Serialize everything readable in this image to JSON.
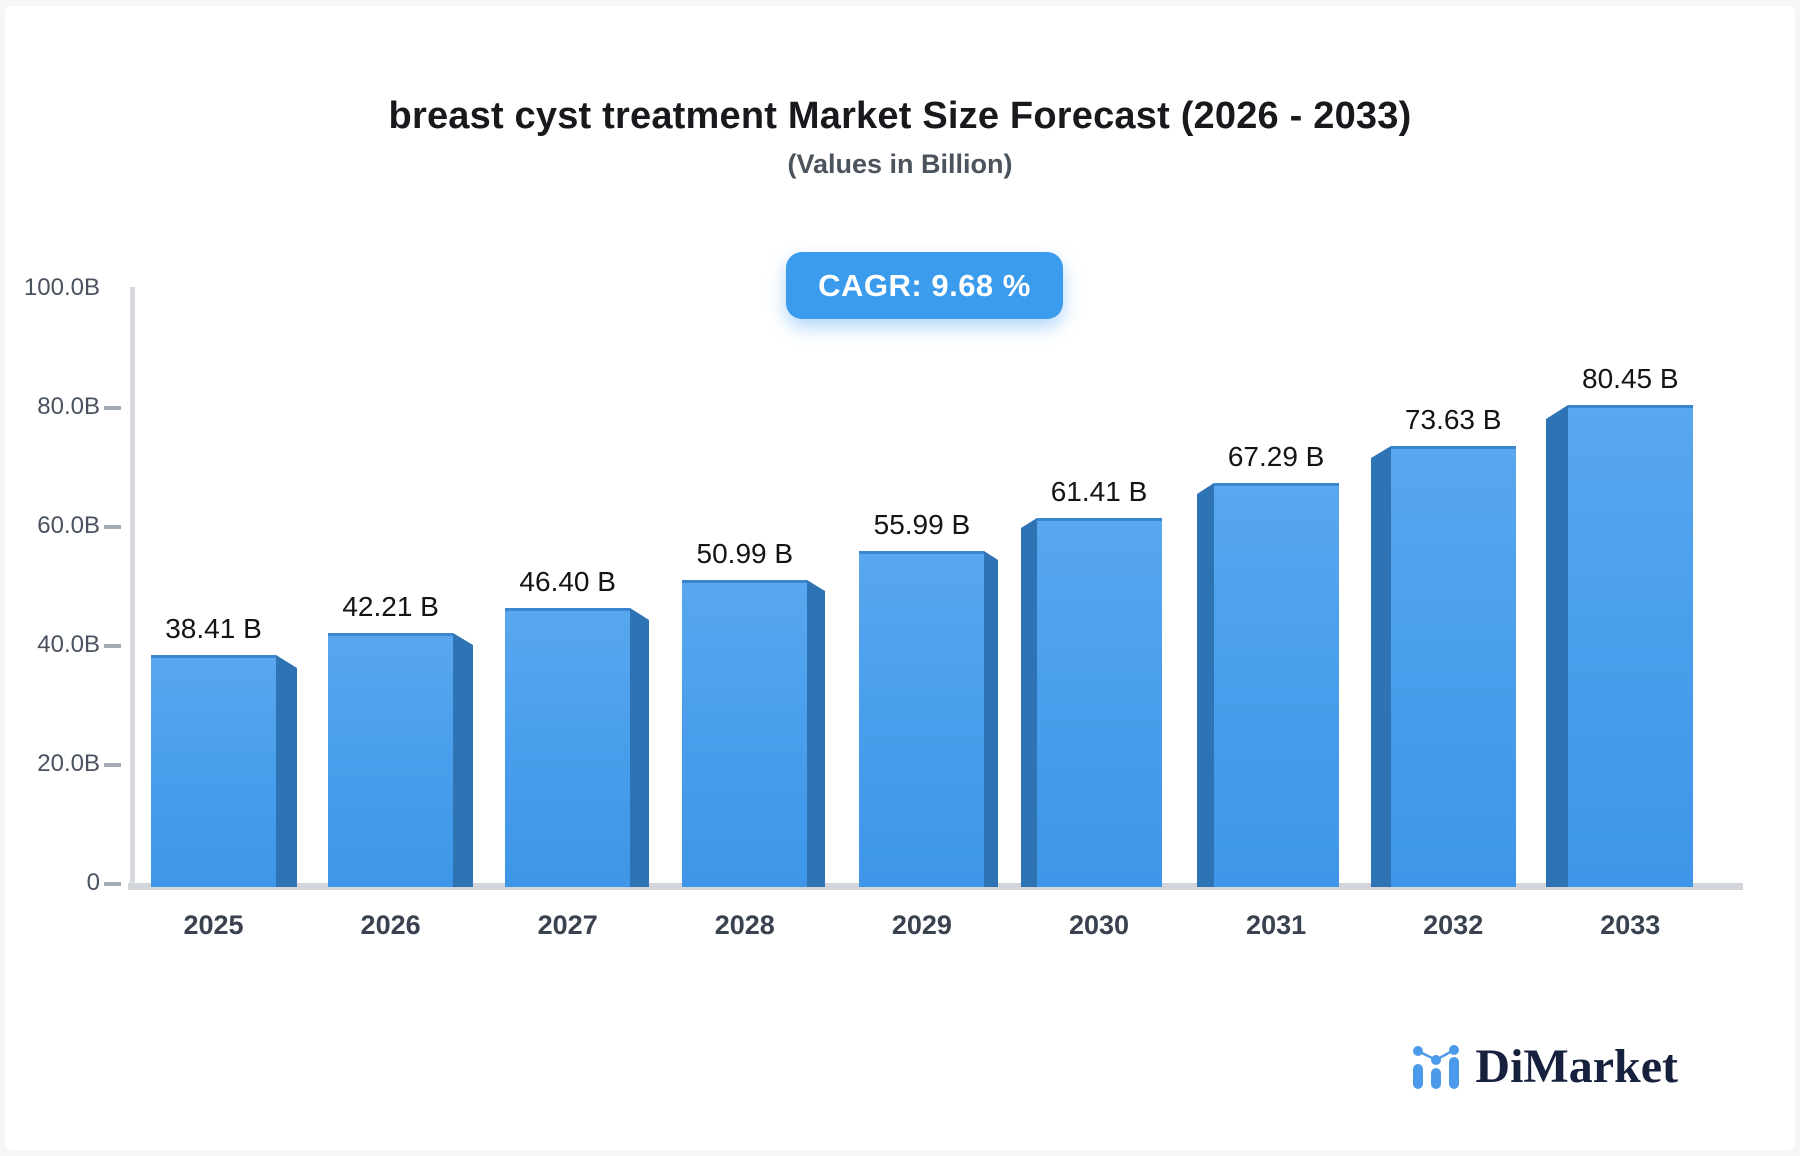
{
  "page": {
    "background_color": "#f4f6f8",
    "card_color": "#ffffff"
  },
  "header": {
    "title": "breast cyst treatment Market Size Forecast (2026 - 2033)",
    "subtitle": "(Values in Billion)"
  },
  "cagr_badge": {
    "label": "CAGR: 9.68 %",
    "color": "#3b9cee",
    "text_color": "#ffffff"
  },
  "chart_data": {
    "type": "bar",
    "title": "breast cyst treatment Market Size Forecast (2026 - 2033)",
    "subtitle": "(Values in Billion)",
    "xlabel": "",
    "ylabel": "",
    "ylim": [
      0,
      100
    ],
    "grid": false,
    "legend": "none",
    "categories": [
      "2025",
      "2026",
      "2027",
      "2028",
      "2029",
      "2030",
      "2031",
      "2032",
      "2033"
    ],
    "values": [
      38.41,
      42.21,
      46.4,
      50.99,
      55.99,
      61.41,
      67.29,
      73.63,
      80.45
    ],
    "value_labels": [
      "38.41 B",
      "42.21 B",
      "46.40 B",
      "50.99 B",
      "55.99 B",
      "61.41 B",
      "67.29 B",
      "73.63 B",
      "80.45 B"
    ],
    "y_ticks": [
      {
        "label": "100.0B",
        "value": 100,
        "dash": false
      },
      {
        "label": "80.0B",
        "value": 80,
        "dash": true
      },
      {
        "label": "60.0B",
        "value": 60,
        "dash": true
      },
      {
        "label": "40.0B",
        "value": 40,
        "dash": true
      },
      {
        "label": "20.0B",
        "value": 20,
        "dash": true
      },
      {
        "label": "0",
        "value": 0,
        "dash": true
      }
    ],
    "bar_color": "#459cea",
    "bar_side_color": "#2e74b4",
    "unit": "Billion"
  },
  "logo": {
    "text": "DiMarket",
    "icon": "bar-line-chart-icon",
    "icon_color": "#4b9bea",
    "text_color": "#16213e"
  }
}
